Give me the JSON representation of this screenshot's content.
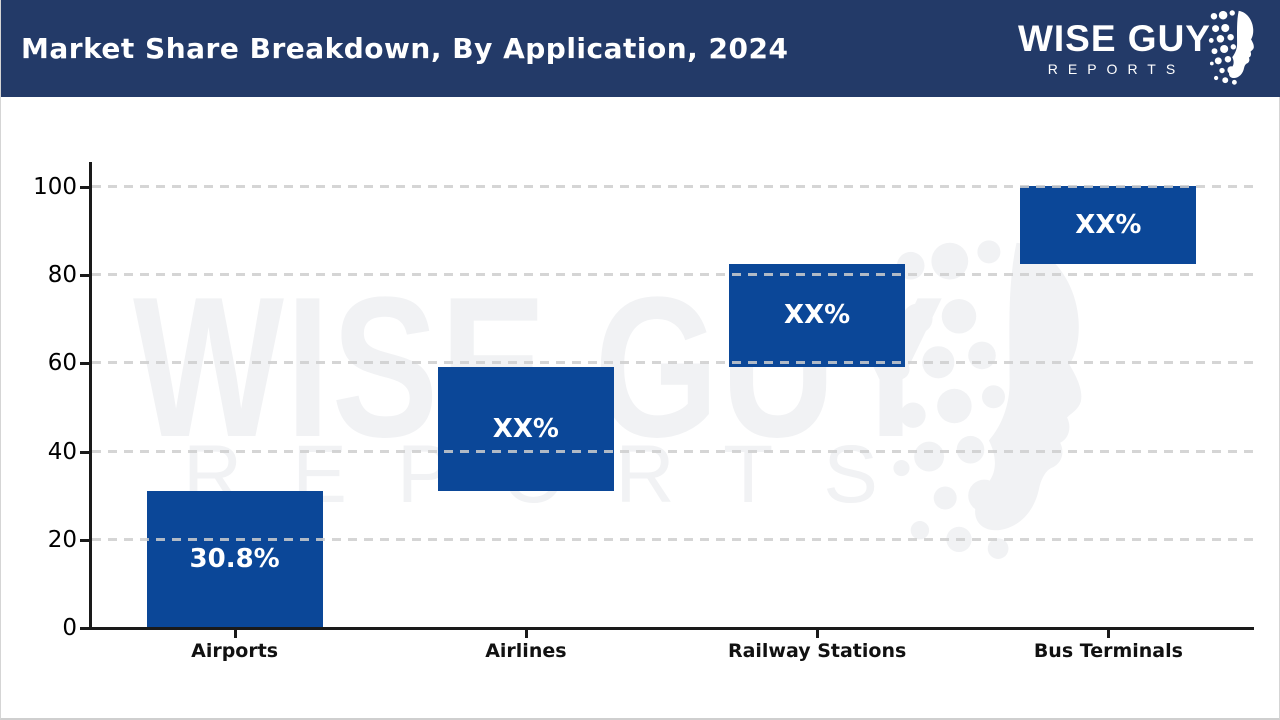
{
  "header": {
    "title": "Market Share Breakdown, By Application, 2024",
    "bg_color": "#233a68",
    "logo": {
      "line1": "WISE GUY",
      "line2": "REPORTS"
    }
  },
  "watermark": {
    "line1": "WISE GUY",
    "line2": "REPORTS",
    "color": "#f1f2f4"
  },
  "chart_data": {
    "type": "bar",
    "subtype": "waterfall",
    "title": "Market Share Breakdown, By Application, 2024",
    "categories": [
      "Airports",
      "Airlines",
      "Railway Stations",
      "Bus Terminals"
    ],
    "segments": [
      {
        "category": "Airports",
        "start": 0,
        "end": 30.8,
        "label": "30.8%"
      },
      {
        "category": "Airlines",
        "start": 30.8,
        "end": 59.0,
        "label": "XX%"
      },
      {
        "category": "Railway Stations",
        "start": 59.0,
        "end": 82.3,
        "label": "XX%"
      },
      {
        "category": "Bus Terminals",
        "start": 82.3,
        "end": 100,
        "label": "XX%"
      }
    ],
    "ylim": [
      0,
      100
    ],
    "yticks": [
      0,
      20,
      40,
      60,
      80,
      100
    ],
    "xlabel": "",
    "ylabel": "",
    "grid": "horizontal-dashed",
    "legend": "none",
    "bar_color": "#0b4798",
    "bar_label_color": "#ffffff",
    "axis_color": "#1a1a1a"
  }
}
